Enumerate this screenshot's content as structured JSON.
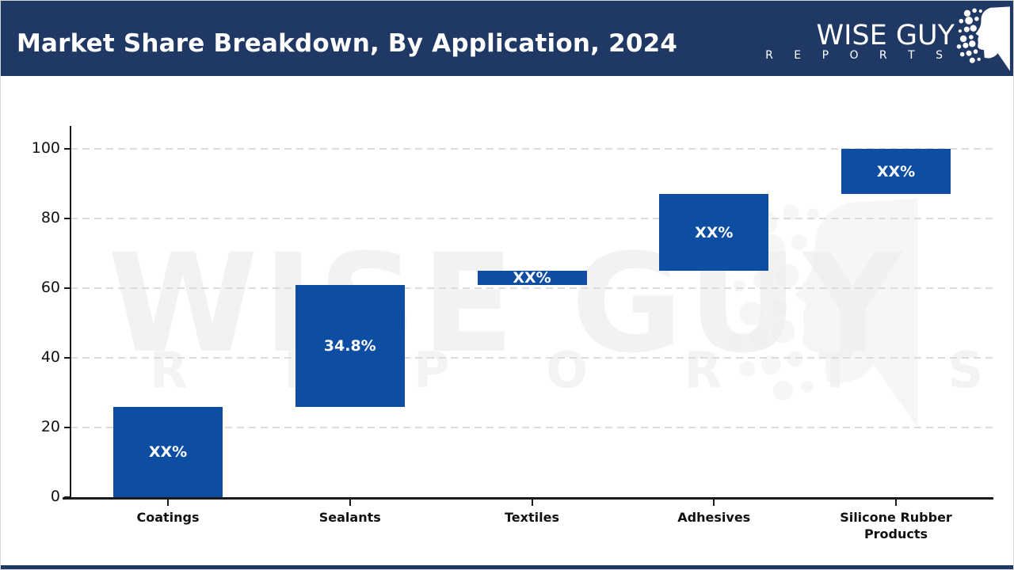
{
  "header": {
    "title": "Market Share Breakdown, By Application, 2024",
    "logo": {
      "line1": "WISE GUY",
      "line2": "R E P O R T S"
    }
  },
  "watermark": {
    "line1": "WISE GUY",
    "line2": "R E P O R T S"
  },
  "chart_data": {
    "type": "bar",
    "subtype": "floating-waterfall",
    "title": "Market Share Breakdown, By Application, 2024",
    "categories": [
      "Coatings",
      "Sealants",
      "Textiles",
      "Adhesives",
      "Silicone Rubber Products"
    ],
    "series": [
      {
        "name": "Market Share",
        "ranges": [
          [
            0,
            26
          ],
          [
            26,
            61
          ],
          [
            61,
            65
          ],
          [
            65,
            87
          ],
          [
            87,
            100
          ]
        ],
        "labels": [
          "XX%",
          "34.8%",
          "XX%",
          "XX%",
          "XX%"
        ]
      }
    ],
    "xlabel": "",
    "ylabel": "",
    "ylim": [
      0,
      105
    ],
    "yticks": [
      0,
      20,
      40,
      60,
      80,
      100
    ],
    "grid": "dashed-horizontal-gridlines",
    "legend": "none"
  },
  "colors": {
    "header_bg": "#1f3864",
    "footer_bg": "#1f3864",
    "bar": "#0d4da2",
    "bar_label": "#ffffff",
    "axis": "#1a1a1a",
    "grid": "#dcdcdc",
    "watermark": "#f2f2f2",
    "page_bg": "#ffffff"
  }
}
